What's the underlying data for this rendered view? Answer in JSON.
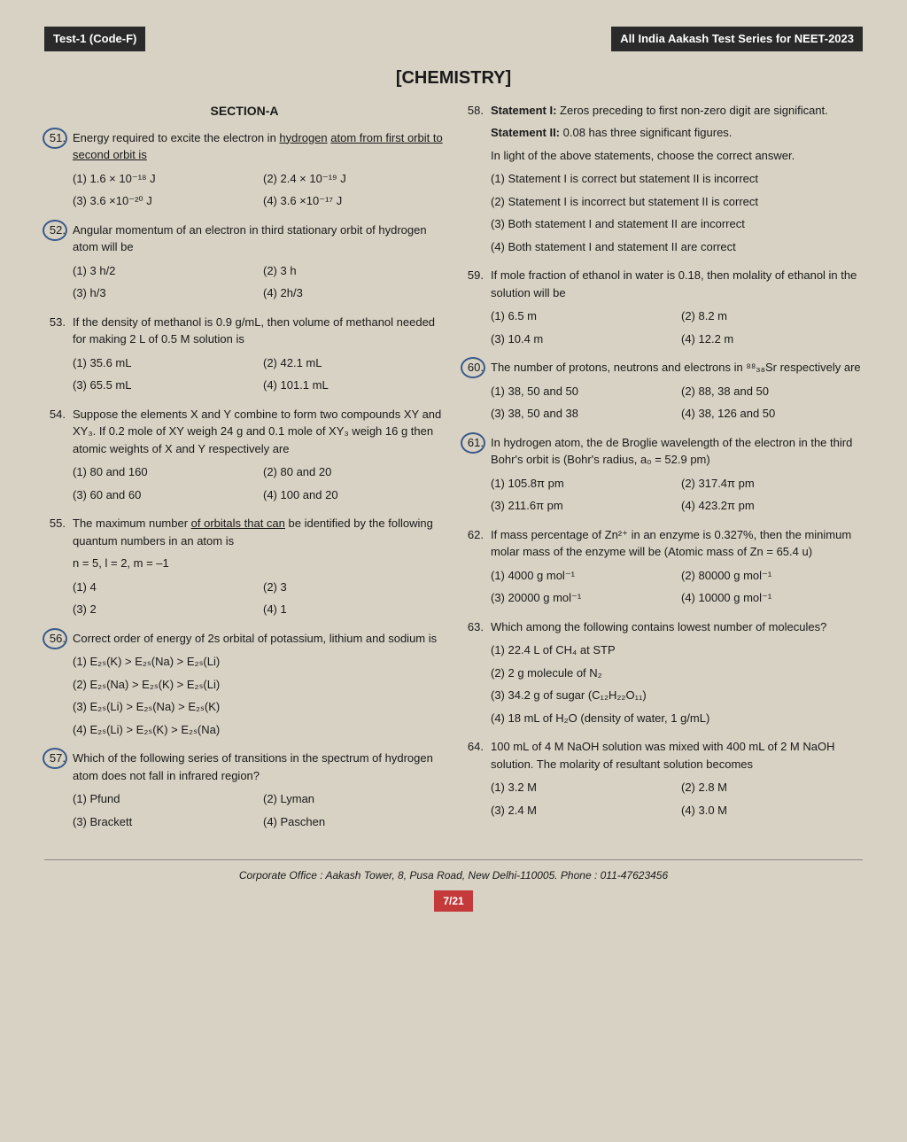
{
  "header": {
    "left": "Test-1 (Code-F)",
    "right": "All India Aakash Test Series for NEET-2023"
  },
  "main_title": "[CHEMISTRY]",
  "section_a": "SECTION-A",
  "q51": {
    "num": "51.",
    "text_a": "Energy required to excite the electron in ",
    "text_b": "hydrogen",
    "text_c": " ",
    "text_d": "atom from first orbit to second orbit is",
    "o1": "(1) 1.6 × 10⁻¹⁸ J",
    "o2": "(2) 2.4 × 10⁻¹⁹ J",
    "o3": "(3) 3.6 ×10⁻²⁰ J",
    "o4": "(4) 3.6 ×10⁻¹⁷ J"
  },
  "q52": {
    "num": "52.",
    "text": "Angular momentum of an electron in third stationary orbit of hydrogen atom will be",
    "o1": "(1) 3 h/2",
    "o2": "(2) 3 h",
    "o3": "(3) h/3",
    "o4": "(4) 2h/3"
  },
  "q53": {
    "num": "53.",
    "text": "If the density of methanol is 0.9 g/mL, then volume of methanol needed for making 2 L of 0.5 M solution is",
    "o1": "(1) 35.6 mL",
    "o2": "(2) 42.1 mL",
    "o3": "(3) 65.5 mL",
    "o4": "(4) 101.1 mL"
  },
  "q54": {
    "num": "54.",
    "text": "Suppose the elements X and Y combine to form two compounds XY and XY₃. If 0.2 mole of XY weigh 24 g and 0.1 mole of XY₃ weigh 16 g then atomic weights of X and Y respectively are",
    "o1": "(1) 80 and 160",
    "o2": "(2) 80 and 20",
    "o3": "(3) 60 and 60",
    "o4": "(4) 100 and 20"
  },
  "q55": {
    "num": "55.",
    "text_a": "The maximum number ",
    "text_b": "of orbitals that can",
    "text_c": " be identified by the following quantum numbers in an atom is",
    "sub": "n = 5, l = 2, m = –1",
    "o1": "(1) 4",
    "o2": "(2) 3",
    "o3": "(3) 2",
    "o4": "(4) 1"
  },
  "q56": {
    "num": "56.",
    "text": "Correct order of energy of 2s orbital of potassium, lithium and sodium is",
    "o1": "(1) E₂ₛ(K) > E₂ₛ(Na) > E₂ₛ(Li)",
    "o2": "(2) E₂ₛ(Na) > E₂ₛ(K) > E₂ₛ(Li)",
    "o3": "(3) E₂ₛ(Li) > E₂ₛ(Na) > E₂ₛ(K)",
    "o4": "(4) E₂ₛ(Li) > E₂ₛ(K) > E₂ₛ(Na)"
  },
  "q57": {
    "num": "57.",
    "text": "Which of the following series of transitions in the spectrum of hydrogen atom does not fall in infrared region?",
    "o1": "(1) Pfund",
    "o2": "(2) Lyman",
    "o3": "(3) Brackett",
    "o4": "(4) Paschen"
  },
  "q58": {
    "num": "58.",
    "s1_label": "Statement I:",
    "s1": " Zeros preceding to first non-zero digit are significant.",
    "s2_label": "Statement II:",
    "s2": " 0.08 has three significant figures.",
    "lead": "In light of the above statements, choose the correct answer.",
    "o1": "(1) Statement I is correct but statement II is incorrect",
    "o2": "(2) Statement I is incorrect but statement II is correct",
    "o3": "(3) Both statement I and statement II are incorrect",
    "o4": "(4) Both statement I and statement II are correct"
  },
  "q59": {
    "num": "59.",
    "text": "If mole fraction of ethanol in water is 0.18, then molality of ethanol in the solution will be",
    "o1": "(1) 6.5 m",
    "o2": "(2) 8.2 m",
    "o3": "(3) 10.4 m",
    "o4": "(4) 12.2 m"
  },
  "q60": {
    "num": "60.",
    "text": "The number of protons, neutrons and electrons in ⁸⁸₃₈Sr respectively are",
    "o1": "(1) 38, 50 and 50",
    "o2": "(2) 88, 38 and 50",
    "o3": "(3) 38, 50 and 38",
    "o4": "(4) 38, 126 and 50"
  },
  "q61": {
    "num": "61.",
    "text": "In hydrogen atom, the de Broglie wavelength of the electron in the third Bohr's orbit is (Bohr's radius, a₀ = 52.9 pm)",
    "o1": "(1) 105.8π pm",
    "o2": "(2) 317.4π pm",
    "o3": "(3) 211.6π pm",
    "o4": "(4) 423.2π pm"
  },
  "q62": {
    "num": "62.",
    "text": "If mass percentage of Zn²⁺ in an enzyme is 0.327%, then the minimum molar mass of the enzyme will be (Atomic mass of Zn = 65.4 u)",
    "o1": "(1) 4000 g mol⁻¹",
    "o2": "(2) 80000 g mol⁻¹",
    "o3": "(3) 20000 g mol⁻¹",
    "o4": "(4) 10000 g mol⁻¹"
  },
  "q63": {
    "num": "63.",
    "text": "Which among the following contains lowest number of molecules?",
    "o1": "(1) 22.4 L of CH₄ at STP",
    "o2": "(2) 2 g molecule of N₂",
    "o3": "(3) 34.2 g of sugar (C₁₂H₂₂O₁₁)",
    "o4": "(4) 18 mL of H₂O (density of water, 1 g/mL)"
  },
  "q64": {
    "num": "64.",
    "text": "100 mL of 4 M NaOH solution was mixed with 400 mL of 2 M NaOH solution. The molarity of resultant solution becomes",
    "o1": "(1) 3.2 M",
    "o2": "(2) 2.8 M",
    "o3": "(3) 2.4 M",
    "o4": "(4) 3.0 M"
  },
  "footer": {
    "text": "Corporate Office : Aakash Tower, 8, Pusa Road, New Delhi-110005. Phone : 011-47623456",
    "page": "7/21"
  }
}
